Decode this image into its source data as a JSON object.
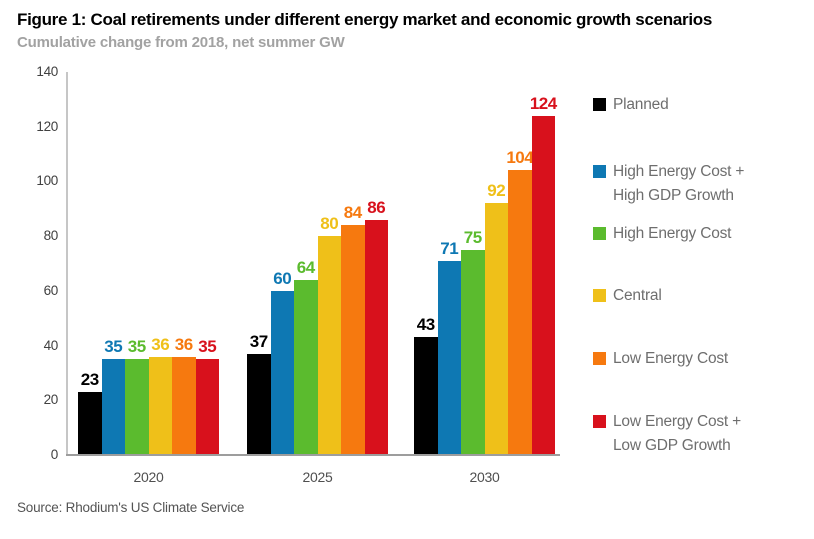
{
  "figure": {
    "title": "Figure 1: Coal retirements under different energy market and economic growth scenarios",
    "subtitle": "Cumulative change from 2018, net summer GW",
    "source": "Source: Rhodium's US Climate Service"
  },
  "chart_data": {
    "type": "bar",
    "title": "Figure 1: Coal retirements under different energy market and economic growth scenarios",
    "subtitle": "Cumulative change from 2018, net summer GW",
    "xlabel": "",
    "ylabel": "net summer GW, cumulative change from 2018",
    "categories": [
      "2020",
      "2025",
      "2030"
    ],
    "series": [
      {
        "name": "Planned",
        "color": "#000000",
        "values": [
          23,
          37,
          43
        ],
        "legend_lines": [
          "Planned"
        ]
      },
      {
        "name": "High Energy Cost + High GDP Growth",
        "color": "#0e78b3",
        "values": [
          35,
          60,
          71
        ],
        "legend_lines": [
          "High Energy Cost +",
          "High GDP Growth"
        ]
      },
      {
        "name": "High Energy Cost",
        "color": "#5bbb2e",
        "values": [
          35,
          64,
          75
        ],
        "legend_lines": [
          "High Energy Cost"
        ]
      },
      {
        "name": "Central",
        "color": "#efc019",
        "values": [
          36,
          80,
          92
        ],
        "legend_lines": [
          "Central"
        ]
      },
      {
        "name": "Low Energy Cost",
        "color": "#f6790f",
        "values": [
          36,
          84,
          104
        ],
        "legend_lines": [
          "Low Energy Cost"
        ]
      },
      {
        "name": "Low Energy Cost + Low GDP Growth",
        "color": "#d8111c",
        "values": [
          35,
          86,
          124
        ],
        "legend_lines": [
          "Low Energy Cost +",
          "Low GDP Growth"
        ]
      }
    ],
    "ylim": [
      0,
      140
    ],
    "yticks": [
      0,
      20,
      40,
      60,
      80,
      100,
      120,
      140
    ],
    "grid": false,
    "legend_position": "right",
    "data_labels": true,
    "data_label_color": "matches-series"
  }
}
